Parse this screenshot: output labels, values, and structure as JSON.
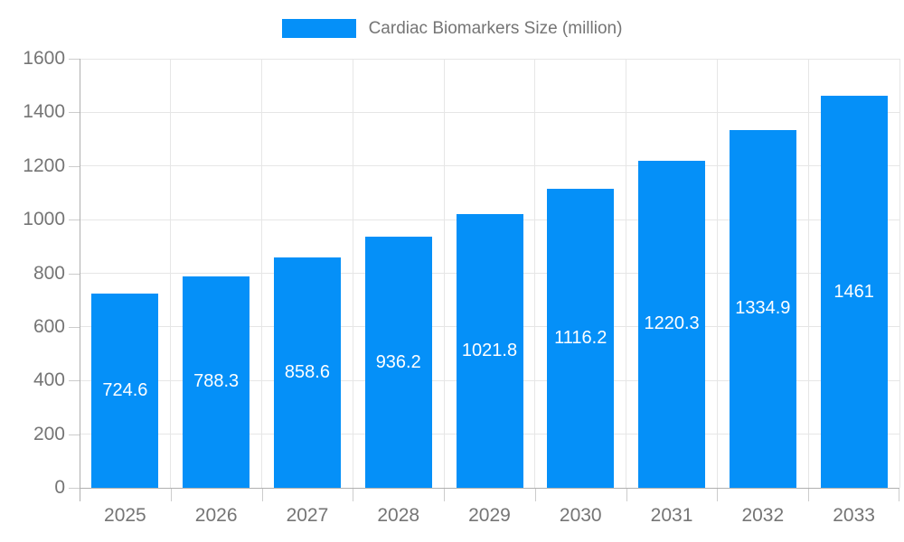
{
  "legend": {
    "label": "Cardiac Biomarkers Size (million)"
  },
  "colors": {
    "bar": "#0590f8",
    "legend_text": "#757575",
    "axis_label": "#757575",
    "value_label": "#ffffff",
    "gridline": "#e6e6e6",
    "axis_line": "#b0b0b0",
    "tick": "#cccccc",
    "background": "#ffffff"
  },
  "chart_data": {
    "type": "bar",
    "title": "",
    "series_name": "Cardiac Biomarkers Size (million)",
    "categories": [
      "2025",
      "2026",
      "2027",
      "2028",
      "2029",
      "2030",
      "2031",
      "2032",
      "2033"
    ],
    "values": [
      724.6,
      788.3,
      858.6,
      936.2,
      1021.8,
      1116.2,
      1220.3,
      1334.9,
      1461
    ],
    "value_labels": [
      "724.6",
      "788.3",
      "858.6",
      "936.2",
      "1021.8",
      "1116.2",
      "1220.3",
      "1334.9",
      "1461"
    ],
    "xlabel": "",
    "ylabel": "",
    "ylim": [
      0,
      1600
    ],
    "ytick_step": 200,
    "yticks": [
      0,
      200,
      400,
      600,
      800,
      1000,
      1200,
      1400,
      1600
    ],
    "grid": true,
    "legend_position": "top",
    "value_label_position": "center"
  }
}
